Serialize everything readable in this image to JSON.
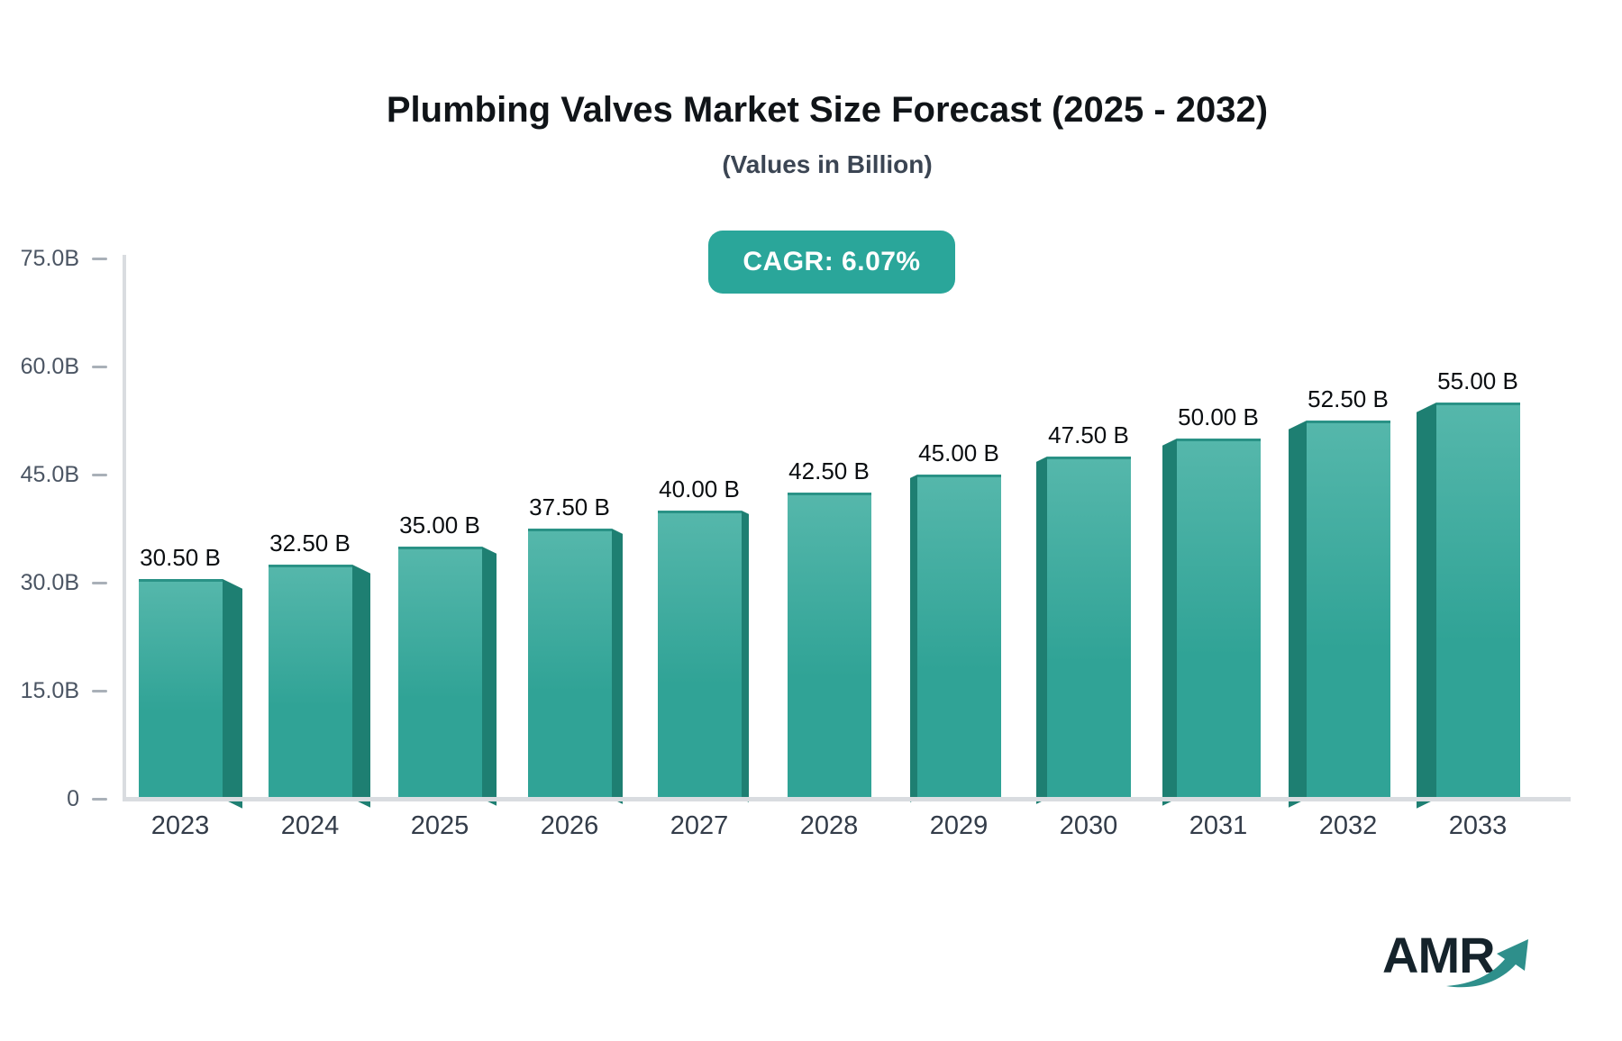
{
  "chart": {
    "title": "Plumbing Valves Market Size Forecast (2025 - 2032)",
    "subtitle": "(Values in Billion)",
    "cagr_label": "CAGR: 6.07%"
  },
  "chart_data": {
    "type": "bar",
    "title": "Plumbing Valves Market Size Forecast (2025 - 2032)",
    "subtitle": "(Values in Billion)",
    "annotation": "CAGR: 6.07%",
    "categories": [
      "2023",
      "2024",
      "2025",
      "2026",
      "2027",
      "2028",
      "2029",
      "2030",
      "2031",
      "2032",
      "2033"
    ],
    "values": [
      30.5,
      32.5,
      35,
      37.5,
      40,
      42.5,
      45,
      47.5,
      50,
      52.5,
      55
    ],
    "value_labels": [
      "30.50 B",
      "32.50 B",
      "35.00 B",
      "37.50 B",
      "40.00 B",
      "42.50 B",
      "45.00 B",
      "47.50 B",
      "50.00 B",
      "52.50 B",
      "55.00 B"
    ],
    "xlabel": "",
    "ylabel": "",
    "ylim": [
      0,
      75
    ],
    "yticks": [
      {
        "value": 75,
        "label": "75.0B"
      },
      {
        "value": 60,
        "label": "60.0B"
      },
      {
        "value": 45,
        "label": "45.0B"
      },
      {
        "value": 30,
        "label": "30.0B"
      },
      {
        "value": 15,
        "label": "15.0B"
      },
      {
        "value": 0,
        "label": "0"
      }
    ],
    "grid": false,
    "legend": false,
    "bar_style": "3d-perspective-center"
  },
  "colors": {
    "bar_face_top": "#55b7ab",
    "bar_face_bottom": "#30a396",
    "bar_face_edge": "#2a9286",
    "bar_side": "#1e7f72",
    "badge_background": "#2aa69a",
    "badge_text": "#ffffff",
    "axis_line": "#d9dce0",
    "tick": "#a9b0b8",
    "ytick_text": "#4b5563",
    "xtick_text": "#333c49",
    "value_label_text": "#0b0e11",
    "title_text": "#101418",
    "logo_text": "#15232b",
    "logo_arrow": "#2e8f8b"
  },
  "logo": {
    "text": "AMR"
  }
}
